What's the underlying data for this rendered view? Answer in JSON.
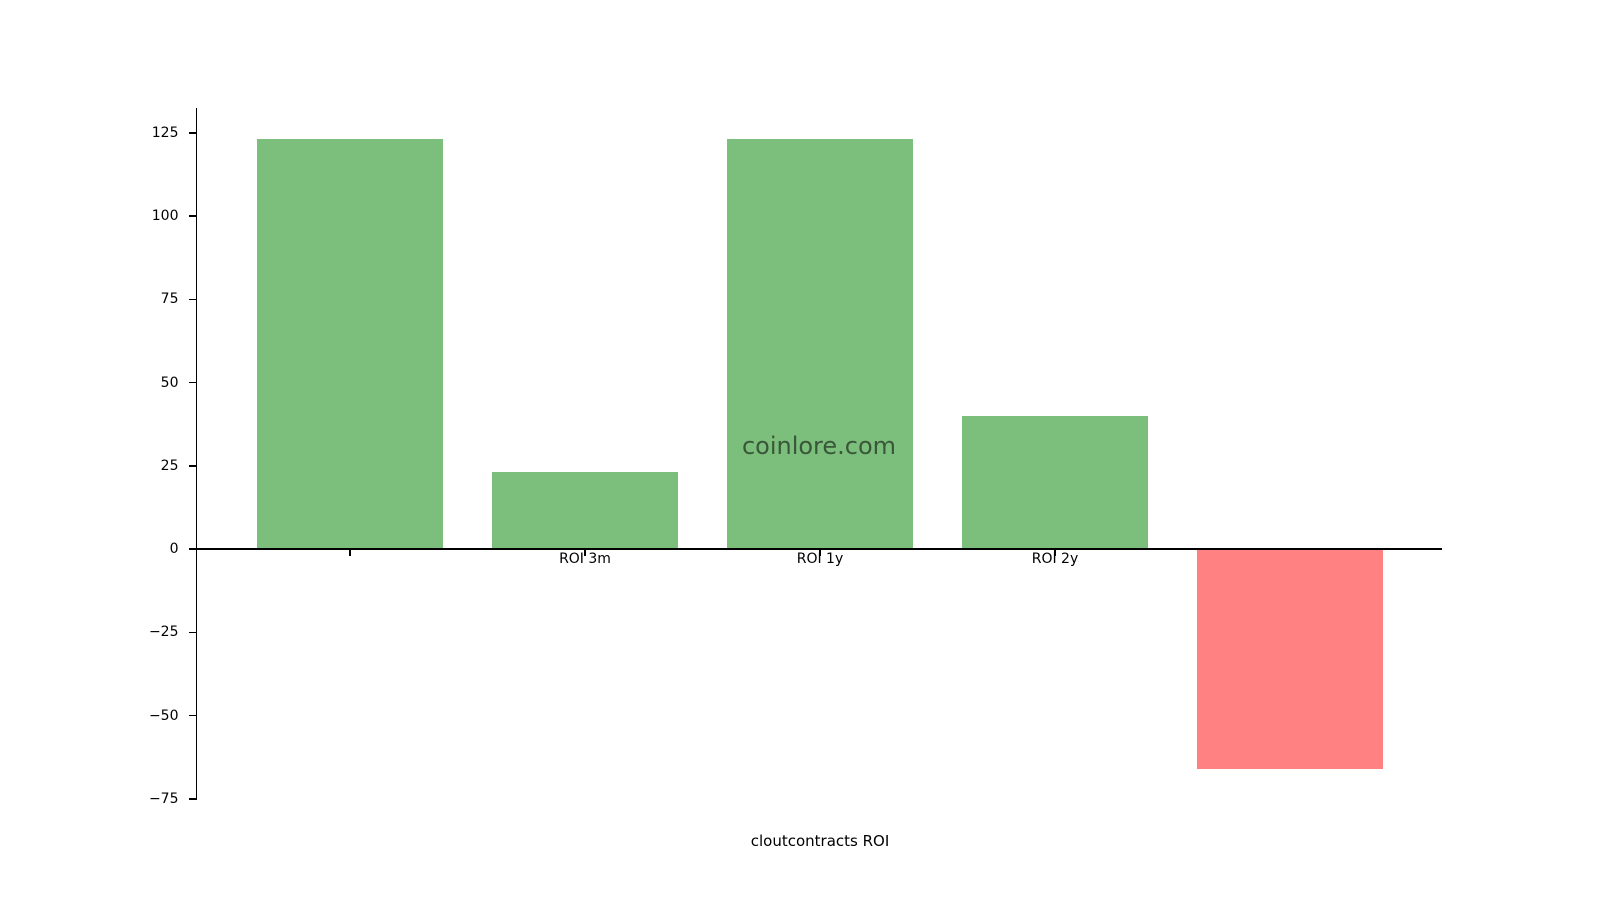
{
  "chart_data": {
    "type": "bar",
    "title": "cloutcontracts ROI",
    "watermark": "coinlore.com",
    "categories": [
      "",
      "ROI 3m",
      "ROI 1y",
      "ROI 2y",
      ""
    ],
    "values": [
      123,
      23,
      123,
      40,
      -66
    ],
    "bar_colors": [
      "#7cbe7c",
      "#7cbe7c",
      "#7cbe7c",
      "#7cbe7c",
      "#ff8181"
    ],
    "positive_color": "#7cbe7c",
    "negative_color": "#ff8181",
    "ytick_values": [
      125,
      100,
      75,
      50,
      25,
      0,
      -25,
      -50,
      -75
    ],
    "ytick_labels": [
      "125",
      "100",
      "75",
      "50",
      "25",
      "0",
      "−25",
      "−50",
      "−75"
    ],
    "xtick_labels": [
      "",
      "ROI 3m",
      "ROI 1y",
      "ROI 2y"
    ],
    "ylim": [
      -75.5,
      132.5
    ],
    "grid": false,
    "legend_position": "none",
    "axis_color": "#000000",
    "text_color": "#000000",
    "watermark_color": "#3f5a3f",
    "background_color": "#ffffff"
  }
}
